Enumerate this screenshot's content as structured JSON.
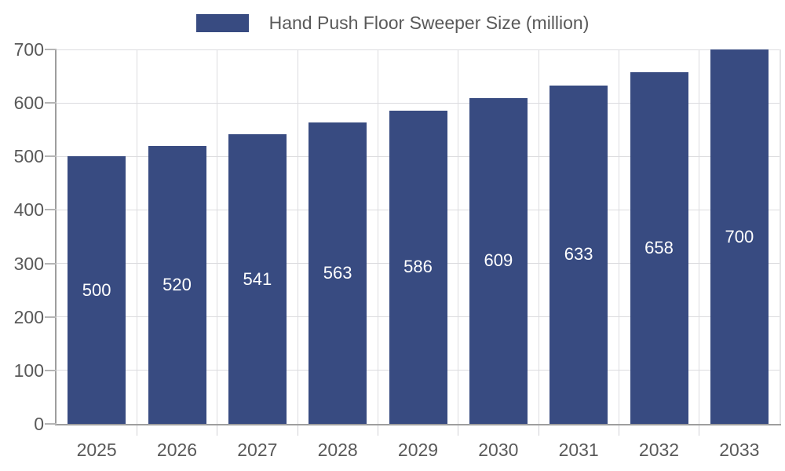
{
  "legend": {
    "label": "Hand Push Floor Sweeper Size (million)"
  },
  "chart_data": {
    "type": "bar",
    "title": "Hand Push Floor Sweeper Size (million)",
    "categories": [
      "2025",
      "2026",
      "2027",
      "2028",
      "2029",
      "2030",
      "2031",
      "2032",
      "2033"
    ],
    "series": [
      {
        "name": "Hand Push Floor Sweeper Size (million)",
        "values": [
          500,
          520,
          541,
          563,
          586,
          609,
          633,
          658,
          700
        ]
      }
    ],
    "bar_labels": [
      500,
      520,
      541,
      563,
      586,
      609,
      633,
      658,
      700
    ],
    "xlabel": "",
    "ylabel": "",
    "ylim": [
      0,
      700
    ],
    "yticks": [
      0,
      100,
      200,
      300,
      400,
      500,
      600,
      700
    ],
    "grid": true,
    "legend_position": "top-center"
  },
  "colors": {
    "bar": "#384B81",
    "grid": "#dcdcdf",
    "axis": "#9e9e9e",
    "tick_text": "#595959",
    "bar_label_text": "#ffffff",
    "background": "#ffffff"
  }
}
